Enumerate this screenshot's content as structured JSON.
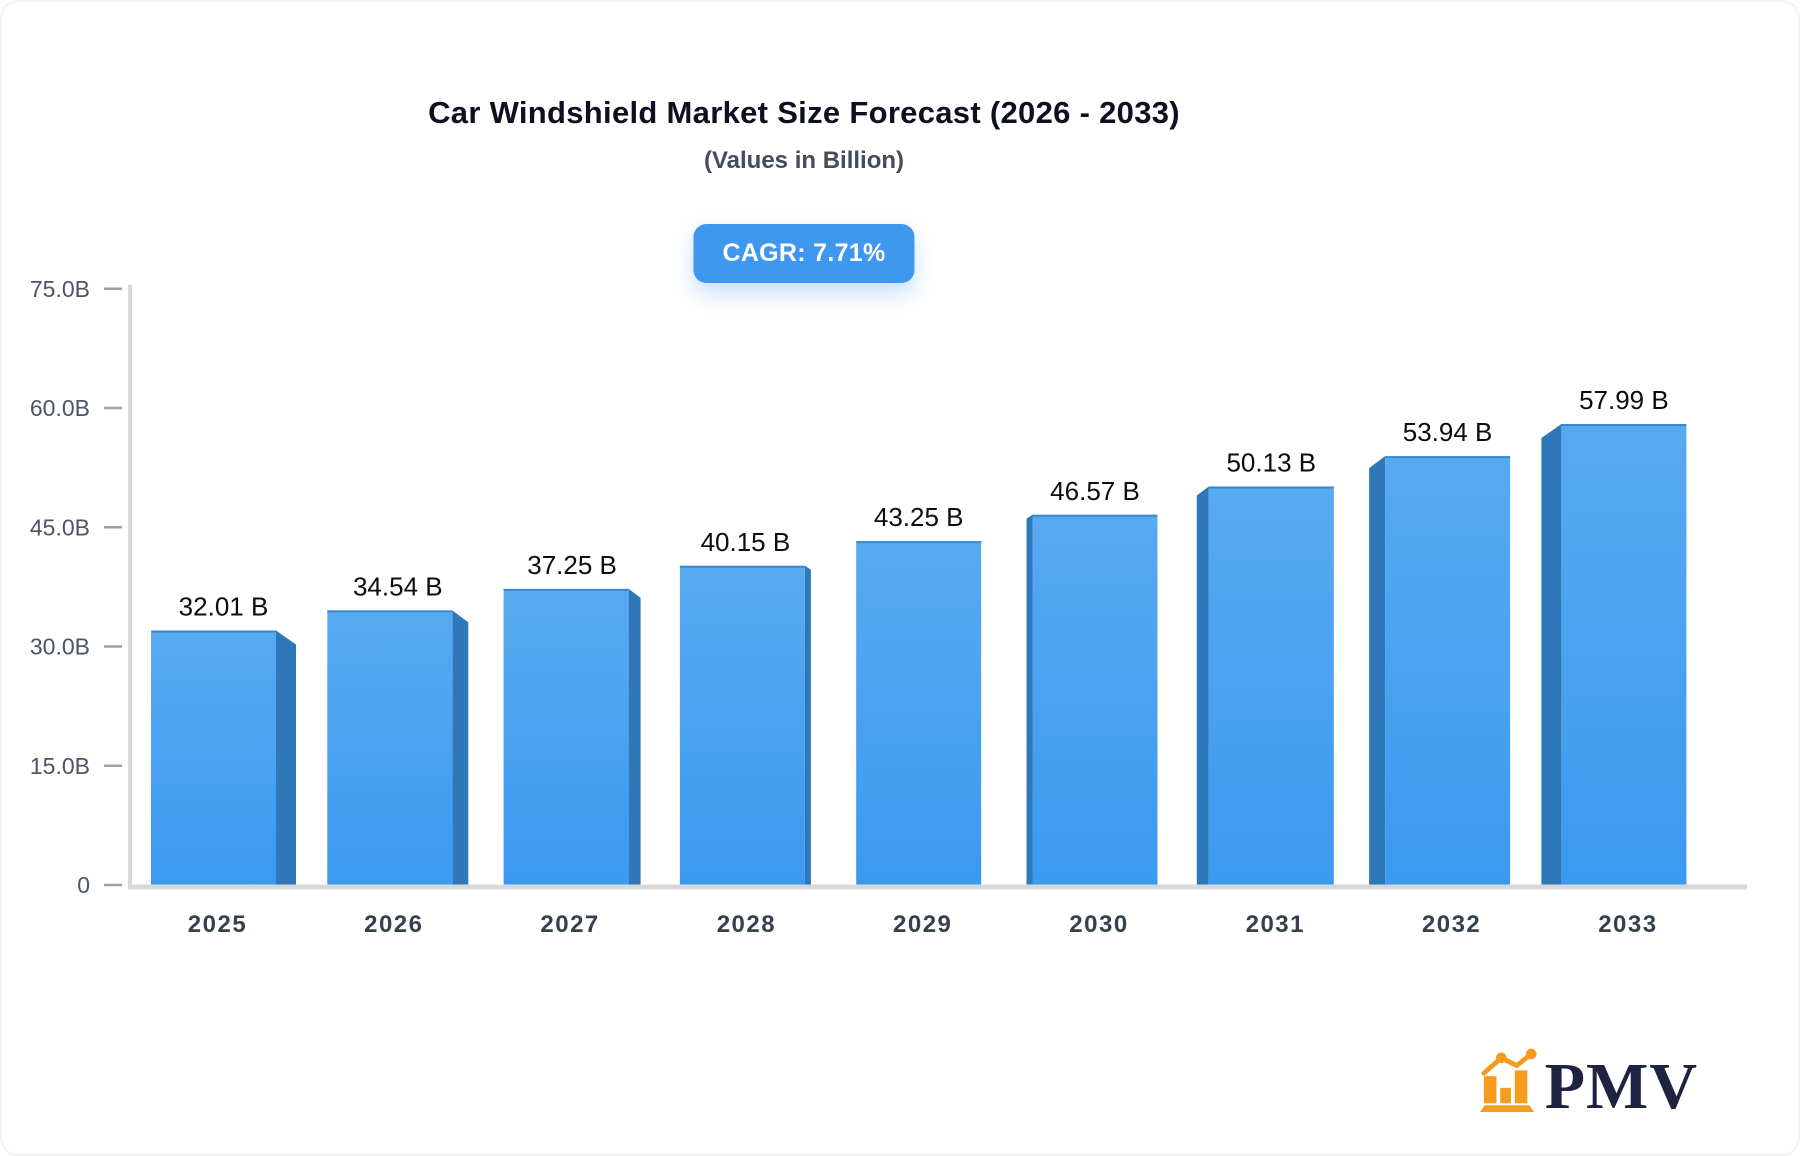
{
  "title": "Car Windshield Market Size Forecast (2026 - 2033)",
  "subtitle": "(Values in Billion)",
  "cagr_badge": "CAGR: 7.71%",
  "brand": "PMV",
  "colors": {
    "bar_front_top": "#58aaf0",
    "bar_front_bottom": "#3b99f1",
    "bar_top_edge": "#2f85cf",
    "bar_side": "#2e78ba",
    "badge_bg": "#3f98f0",
    "axis_gray": "#d6d9dc",
    "tick_dash": "#9aa1ab",
    "tick_text": "#4b5563",
    "xlabel_text": "#36404e",
    "value_text": "#0b0c0e",
    "brand_navy": "#1d2340",
    "brand_orange": "#f59b1e"
  },
  "chart_data": {
    "type": "bar",
    "title": "Car Windshield Market Size Forecast (2026 - 2033)",
    "subtitle": "(Values in Billion)",
    "annotation": "CAGR: 7.71%",
    "categories": [
      "2025",
      "2026",
      "2027",
      "2028",
      "2029",
      "2030",
      "2031",
      "2032",
      "2033"
    ],
    "values": [
      32.01,
      34.54,
      37.25,
      40.15,
      43.25,
      46.57,
      50.13,
      53.94,
      57.99
    ],
    "value_labels": [
      "32.01 B",
      "34.54 B",
      "37.25 B",
      "40.15 B",
      "43.25 B",
      "46.57 B",
      "50.13 B",
      "53.94 B",
      "57.99 B"
    ],
    "y_ticks": [
      {
        "label": "75.0B",
        "value": 75
      },
      {
        "label": "60.0B",
        "value": 60
      },
      {
        "label": "45.0B",
        "value": 45
      },
      {
        "label": "30.0B",
        "value": 30
      },
      {
        "label": "15.0B",
        "value": 15
      },
      {
        "label": "0",
        "value": 0
      }
    ],
    "ylim": [
      0,
      75
    ],
    "xlabel": "",
    "ylabel": "",
    "grid": false,
    "legend": null
  }
}
